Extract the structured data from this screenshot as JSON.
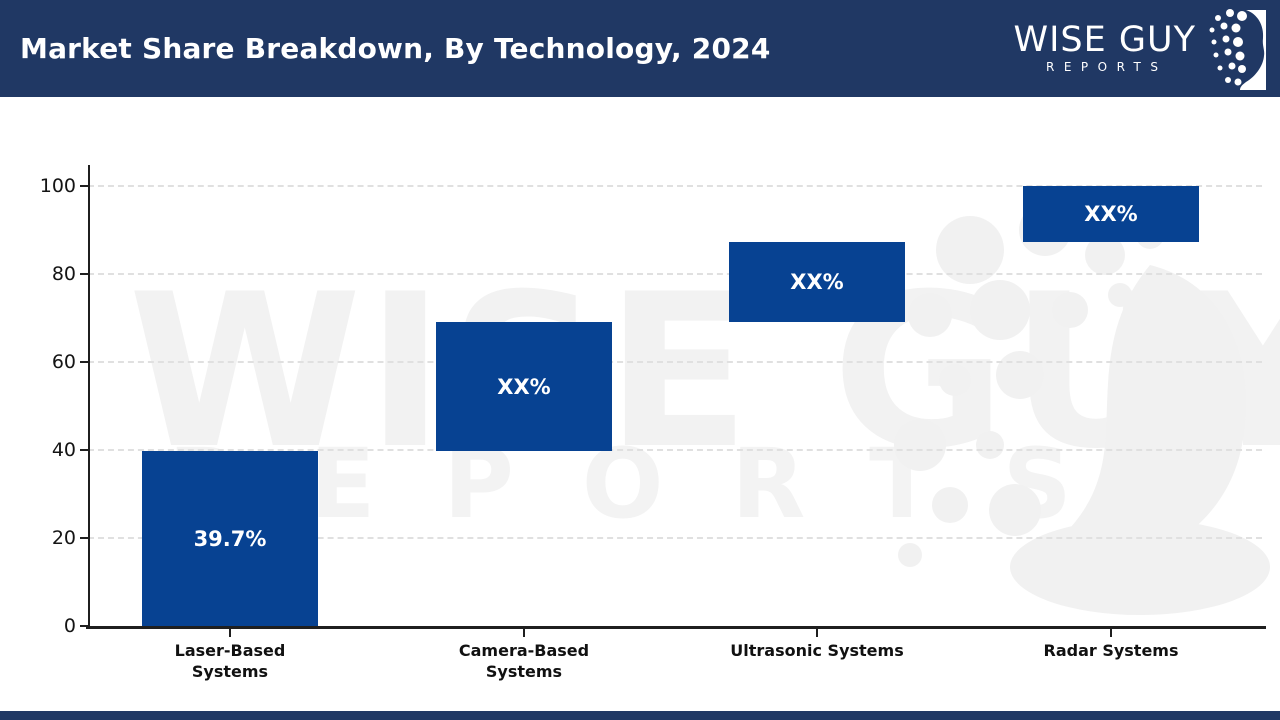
{
  "header": {
    "title": "Market Share Breakdown, By Technology, 2024",
    "bg_color": "#203864",
    "logo": {
      "line1": "WISE GUY",
      "line2": "REPORTS"
    }
  },
  "watermark": {
    "line1": "WISE GUY",
    "line2": "REPORTS"
  },
  "footer": {
    "bg_color": "#203864"
  },
  "chart_data": {
    "type": "bar",
    "subtype": "waterfall",
    "title": "Market Share Breakdown, By Technology, 2024",
    "xlabel": "",
    "ylabel": "",
    "categories": [
      [
        "Laser-Based",
        "Systems"
      ],
      [
        "Camera-Based",
        "Systems"
      ],
      [
        "Ultrasonic Systems"
      ],
      [
        "Radar Systems"
      ]
    ],
    "segments": [
      {
        "category": "Laser-Based Systems",
        "start": 0,
        "end": 39.7,
        "value": 39.7,
        "label": "39.7%"
      },
      {
        "category": "Camera-Based Systems",
        "start": 39.7,
        "end": 69.1,
        "value": 29.4,
        "label": "XX%"
      },
      {
        "category": "Ultrasonic Systems",
        "start": 69.1,
        "end": 87.3,
        "value": 18.2,
        "label": "XX%"
      },
      {
        "category": "Radar Systems",
        "start": 87.3,
        "end": 100,
        "value": 12.7,
        "label": "XX%"
      }
    ],
    "yticks": [
      0,
      20,
      40,
      60,
      80,
      100
    ],
    "ylim": [
      0,
      105
    ],
    "bar_color": "#074292",
    "bar_label_color": "#ffffff",
    "grid": "horizontal dashed",
    "legend": "none"
  }
}
